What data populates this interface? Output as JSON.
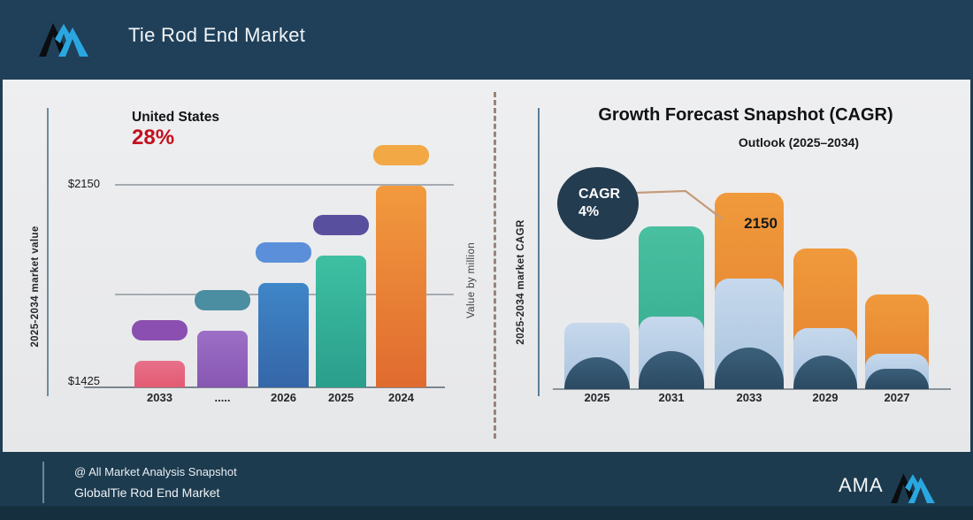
{
  "header": {
    "title": "Tie Rod End Market",
    "logo_icon": "ama-mountain-logo"
  },
  "colors": {
    "navy_bg": "#1f3d53",
    "panel_bg": "#e9eaec",
    "accent_red": "#c3101f",
    "logo_cyan": "#2aa7e0",
    "logo_black": "#0b0d10",
    "badge_navy": "#243c50",
    "connector_tan": "#c49a7a",
    "dome_navy_top": "#3c607a",
    "dome_navy_bottom": "#2b4962",
    "lightblue_top": "#c6d8ec",
    "lightblue_bottom": "#a9c3de",
    "teal_top": "#49c0a0",
    "teal_bottom": "#33a98c",
    "orange_top": "#f09a3c",
    "orange_bottom": "#e3802e"
  },
  "chart_data": [
    {
      "type": "bar",
      "title": "United States",
      "annotation": "28%",
      "ylabel": "2025-2034 market value",
      "ylabel_right": "Value by million",
      "categories": [
        "2033",
        ".....",
        "2026",
        "2025",
        "2024"
      ],
      "values": [
        1520,
        1630,
        1800,
        1900,
        2150
      ],
      "ylim": [
        1425,
        2210
      ],
      "yticks": [
        {
          "label": "$2150",
          "value": 2150
        },
        {
          "label": "$1425",
          "value": 1425
        }
      ],
      "gridline_values": [
        2150,
        1762
      ],
      "grid": true,
      "bar_colors": [
        {
          "top": "#e8708a",
          "bottom": "#e25b72"
        },
        {
          "top": "#9d6fc6",
          "bottom": "#8757b2"
        },
        {
          "top": "#3e86c8",
          "bottom": "#3566a8"
        },
        {
          "top": "#3ec0a2",
          "bottom": "#2a9e8c"
        },
        {
          "top": "#f29a3e",
          "bottom": "#e06b2f"
        }
      ],
      "cap_colors": [
        "#8a4fb0",
        "#4b8da1",
        "#5b8fd9",
        "#58509f",
        "#f2a844"
      ]
    },
    {
      "type": "bar",
      "subtype": "stacked-rounded",
      "title": "Growth Forecast Snapshot (CAGR)",
      "subtitle": "Outlook (2025–2034)",
      "ylabel": "2025-2034 market CAGR",
      "badge": {
        "line1": "CAGR",
        "line2": "4%"
      },
      "data_label": {
        "text": "2150",
        "category": "2033"
      },
      "categories": [
        "2025",
        "2031",
        "2033",
        "2029",
        "2027"
      ],
      "series": [
        {
          "name": "base-dome",
          "values": [
            36,
            43,
            47,
            38,
            23
          ]
        },
        {
          "name": "mid-band",
          "values": [
            39,
            39,
            78,
            31,
            17
          ]
        },
        {
          "name": "top-segment",
          "values": [
            0,
            102,
            97,
            90,
            67
          ]
        }
      ],
      "top_segment_colors": [
        "lightblue",
        "teal",
        "orange",
        "orange",
        "orange"
      ],
      "legend": null,
      "grid": false
    }
  ],
  "footer": {
    "line1": "@ All Market Analysis Snapshot",
    "line2": "GlobalTie Rod End Market",
    "brand": "AMA",
    "logo_icon": "ama-mountain-logo"
  }
}
